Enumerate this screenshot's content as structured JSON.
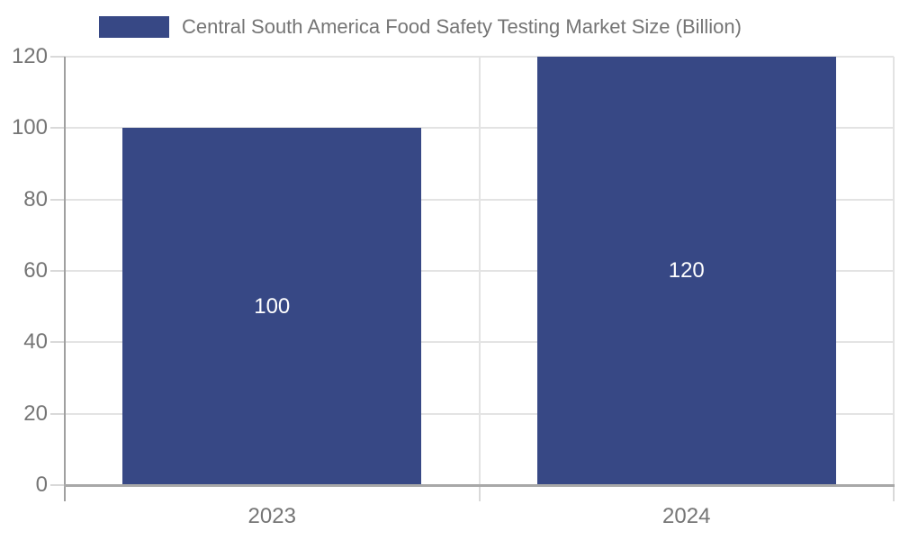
{
  "legend": {
    "label": "Central South America Food Safety Testing Market Size (Billion)"
  },
  "chart_data": {
    "type": "bar",
    "title": "",
    "series_name": "Central South America Food Safety Testing Market Size (Billion)",
    "categories": [
      "2023",
      "2024"
    ],
    "values": [
      100,
      120
    ],
    "data_labels": [
      "100",
      "120"
    ],
    "xlabel": "",
    "ylabel": "",
    "ylim": [
      0,
      120
    ],
    "yticks": [
      0,
      20,
      40,
      60,
      80,
      100,
      120
    ],
    "grid": true,
    "legend_position": "top-center",
    "bar_width_fraction": 0.72
  },
  "colors": {
    "bar": "#374885",
    "data_label": "#ffffff",
    "axis_line_x": "#a8a8a8",
    "axis_line_y": "#a0a0a0",
    "gridline": "#e3e3e3",
    "tick_mark": "#d9d9d9",
    "tick_text": "#757575",
    "legend_text": "#757575",
    "background": "#ffffff"
  }
}
